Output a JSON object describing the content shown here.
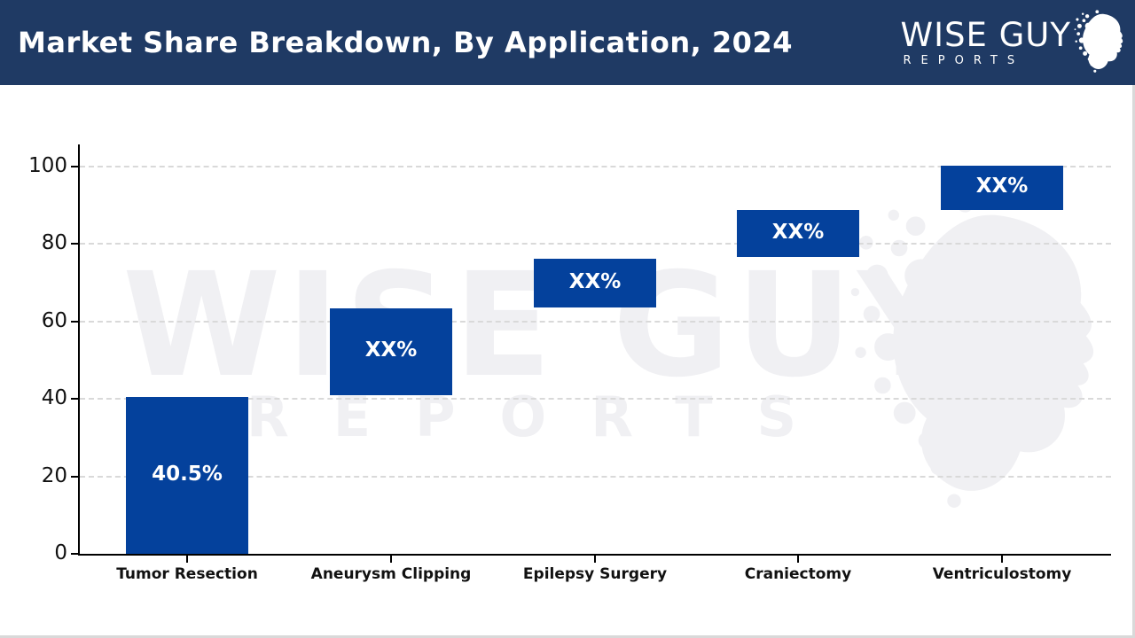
{
  "header": {
    "title": "Market Share Breakdown, By Application, 2024",
    "brand": {
      "line1": "WISE GUY",
      "line2": "REPORTS"
    }
  },
  "watermark": {
    "line1": "WISE GUY",
    "line2": "REPORTS"
  },
  "chart_data": {
    "type": "bar",
    "subtype": "waterfall",
    "title": "Market Share Breakdown, By Application, 2024",
    "categories": [
      "Tumor Resection",
      "Aneurysm Clipping",
      "Epilepsy Surgery",
      "Craniectomy",
      "Ventriculostomy"
    ],
    "bars": [
      {
        "category": "Tumor Resection",
        "start": 0,
        "end": 40.5,
        "label": "40.5%"
      },
      {
        "category": "Aneurysm Clipping",
        "start": 40.9,
        "end": 63.4,
        "label": "XX%"
      },
      {
        "category": "Epilepsy Surgery",
        "start": 63.6,
        "end": 76.2,
        "label": "XX%"
      },
      {
        "category": "Craniectomy",
        "start": 76.6,
        "end": 88.7,
        "label": "XX%"
      },
      {
        "category": "Ventriculostomy",
        "start": 88.9,
        "end": 100.3,
        "label": "XX%"
      }
    ],
    "yticks": [
      0,
      20,
      40,
      60,
      80,
      100
    ],
    "ylim": [
      0,
      106
    ],
    "xlabel": "",
    "ylabel": "",
    "grid": "horizontal-dashed",
    "legend": "none"
  },
  "colors": {
    "header_bg": "#1f3a64",
    "bar": "#04419c",
    "bar_label": "#ffffff",
    "gridline": "#d9d9d9",
    "axis": "#000000",
    "watermark": "#f0f0f3"
  }
}
